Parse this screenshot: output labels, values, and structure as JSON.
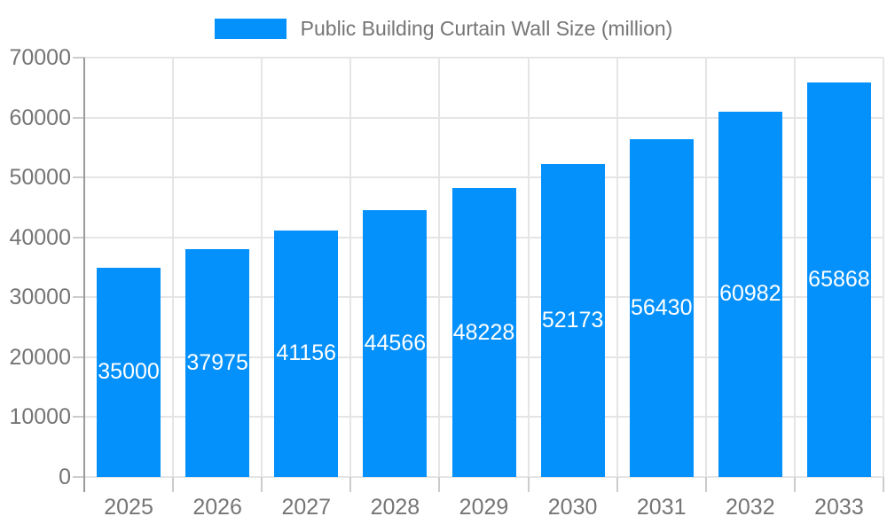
{
  "chart_data": {
    "type": "bar",
    "title": "Public Building Curtain Wall Size (million)",
    "categories": [
      "2025",
      "2026",
      "2027",
      "2028",
      "2029",
      "2030",
      "2031",
      "2032",
      "2033"
    ],
    "values": [
      35000,
      37975,
      41156,
      44566,
      48228,
      52173,
      56430,
      60982,
      65868
    ],
    "xlabel": "",
    "ylabel": "",
    "ylim": [
      0,
      70000
    ],
    "yticks": [
      0,
      10000,
      20000,
      30000,
      40000,
      50000,
      60000,
      70000
    ],
    "grid": true,
    "legend_position": "top-center",
    "bar_labels_inside": true
  },
  "legend": {
    "label": "Public Building Curtain Wall Size (million)"
  },
  "colors": {
    "bar": "#0591fb",
    "value_label": "#ffffff",
    "axis_text": "#757575",
    "grid_line": "#e5e5e5",
    "tick_line": "#cccccc",
    "axis_line": "#9a9a9a",
    "background": "#ffffff"
  }
}
